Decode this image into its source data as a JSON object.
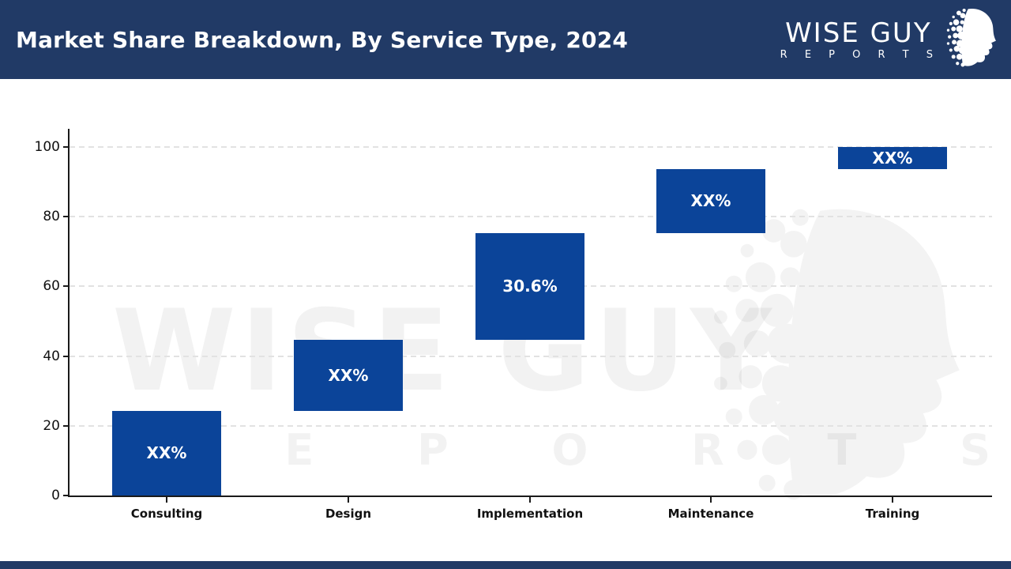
{
  "header": {
    "title": "Market Share Breakdown, By Service Type, 2024",
    "logo": {
      "line1": "WISE GUY",
      "line2": "R E P O R T S"
    }
  },
  "watermark": {
    "line1": "WISE GUY",
    "line2": "R E P O R T S"
  },
  "colors": {
    "header_bg": "#213a66",
    "footer_bg": "#213a66",
    "bar_blue": "#0b4499",
    "grid_gray": "#e2e2e2",
    "axis_black": "#1a1a1a",
    "bar_label_white": "#ffffff",
    "watermark_gray": "#f2f2f2"
  },
  "chart_data": {
    "type": "bar",
    "subtype": "waterfall",
    "title": "Market Share Breakdown, By Service Type, 2024",
    "xlabel": "",
    "ylabel": "",
    "categories": [
      "Consulting",
      "Design",
      "Implementation",
      "Maintenance",
      "Training"
    ],
    "segments": [
      {
        "category": "Consulting",
        "start": 0,
        "end": 24.3,
        "label": "XX%"
      },
      {
        "category": "Design",
        "start": 24.3,
        "end": 44.7,
        "label": "XX%"
      },
      {
        "category": "Implementation",
        "start": 44.7,
        "end": 75.3,
        "label": "30.6%"
      },
      {
        "category": "Maintenance",
        "start": 75.3,
        "end": 93.7,
        "label": "XX%"
      },
      {
        "category": "Training",
        "start": 93.7,
        "end": 100,
        "label": "XX%"
      }
    ],
    "yticks": [
      0,
      20,
      40,
      60,
      80,
      100
    ],
    "ylim": [
      0,
      105
    ],
    "grid": "horizontal-dashed",
    "legend": "none"
  }
}
